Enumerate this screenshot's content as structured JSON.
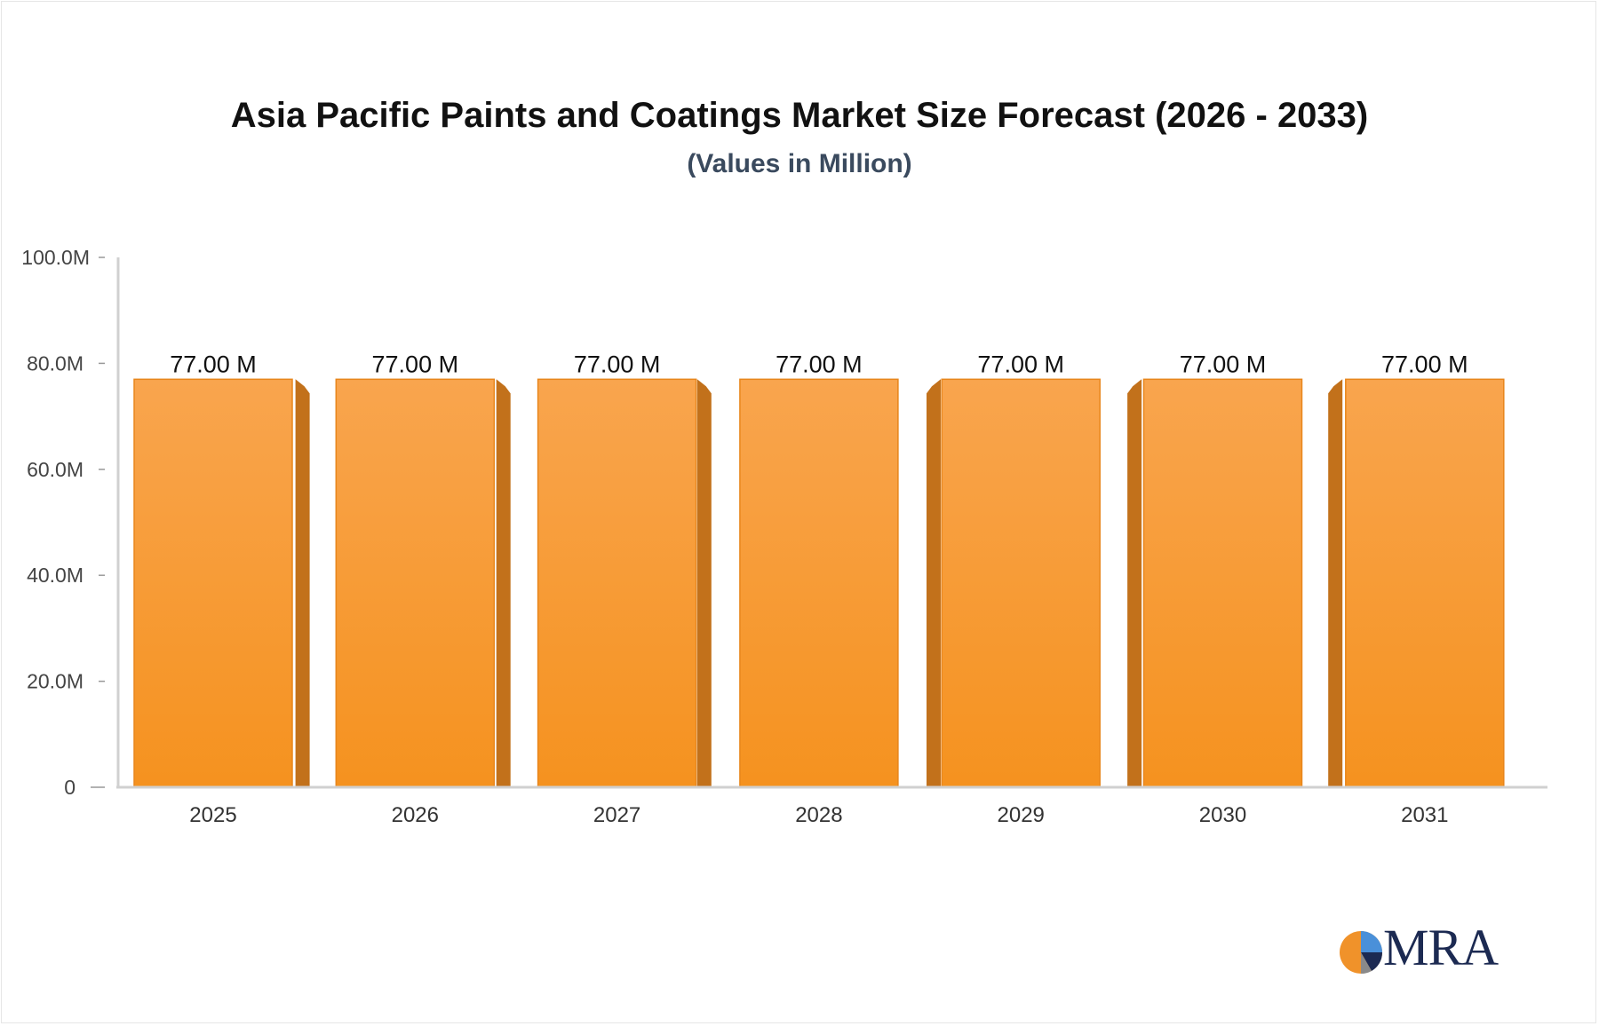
{
  "chart_data": {
    "type": "bar",
    "title": "Asia Pacific Paints and Coatings Market Size Forecast (2026 - 2033)",
    "subtitle": "(Values in Million)",
    "categories": [
      "2025",
      "2026",
      "2027",
      "2028",
      "2029",
      "2030",
      "2031"
    ],
    "values": [
      77.0,
      77.0,
      77.0,
      77.0,
      77.0,
      77.0,
      77.0
    ],
    "data_labels": [
      "77.00 M",
      "77.00 M",
      "77.00 M",
      "77.00 M",
      "77.00 M",
      "77.00 M",
      "77.00 M"
    ],
    "ylim": [
      0,
      100
    ],
    "yticks": [
      0,
      20,
      40,
      60,
      80,
      100
    ],
    "ytick_labels": [
      "0",
      "20.0M",
      "40.0M",
      "60.0M",
      "80.0M",
      "100.0M"
    ],
    "xlabel": "",
    "ylabel": "",
    "grid": false,
    "legend": "none",
    "colors": {
      "bar_top": "#f9a54e",
      "bar_bottom": "#f5921f",
      "bar_edge": "#e8861c",
      "bar_side": "#c2711b",
      "axis": "#d0d0d0",
      "text": "#333333"
    }
  },
  "brand": {
    "logo_text": "MRA"
  }
}
